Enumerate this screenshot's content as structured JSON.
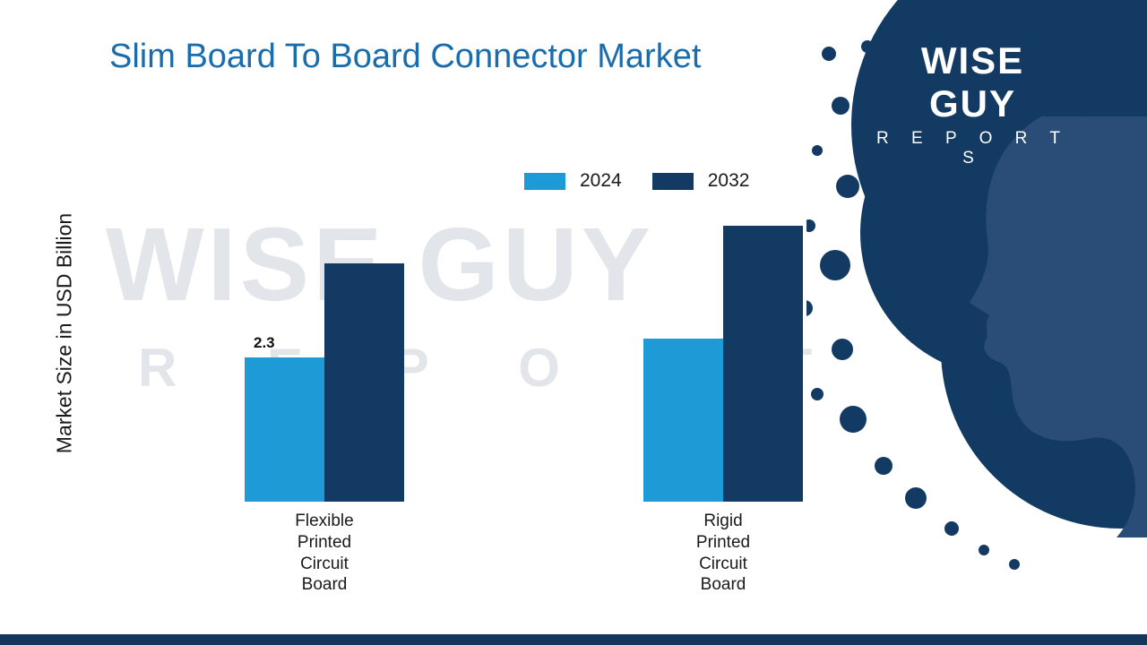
{
  "logo": {
    "line1": "WISE GUY",
    "line2": "R E P O R T S"
  },
  "watermark": {
    "line1": "WISE GUY",
    "line2": "R E P O R T"
  },
  "chart_data": {
    "type": "bar",
    "title": "Slim Board To Board Connector Market",
    "ylabel": "Market Size in USD Billion",
    "ylim": [
      0,
      5
    ],
    "grid": false,
    "legend_position": "top-right",
    "categories": [
      "Flexible Printed Circuit Board",
      "Rigid Printed Circuit Board"
    ],
    "series": [
      {
        "name": "2024",
        "color": "#1e9bd7",
        "values": [
          2.3,
          2.6
        ],
        "labels": [
          "2.3",
          null
        ]
      },
      {
        "name": "2032",
        "color": "#123a63",
        "values": [
          3.8,
          4.4
        ],
        "labels": [
          null,
          null
        ]
      }
    ]
  },
  "colors": {
    "title": "#1a6dad",
    "watermark": "#e2e5e9",
    "logo_bg": "#123a63",
    "logo_face": "#2a4d78",
    "footer": "#16365c",
    "text": "#1a1a1a"
  }
}
